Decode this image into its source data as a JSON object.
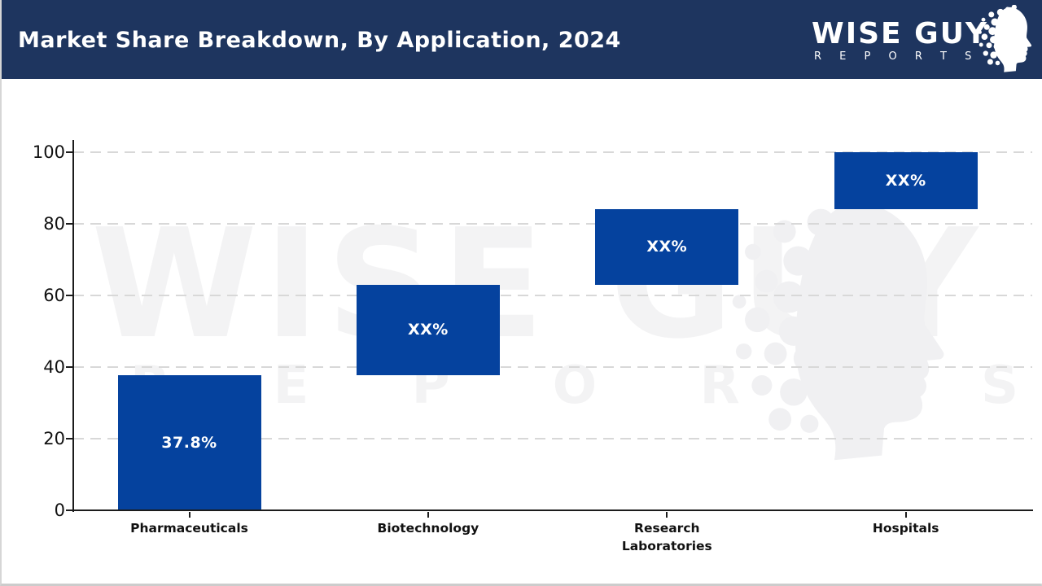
{
  "header": {
    "title": "Market Share Breakdown, By Application, 2024",
    "bg_color": "#1e355f",
    "logo": {
      "line1": "WISE GUY",
      "line2": "R E P O R T S",
      "icon": "wiseguy-head-icon"
    }
  },
  "watermark": {
    "line1": "WISE GUY",
    "line2": "R E P O R T S",
    "icon": "wiseguy-head-icon"
  },
  "chart_data": {
    "type": "bar",
    "subtype": "waterfall",
    "title": "Market Share Breakdown, By Application, 2024",
    "categories": [
      "Pharmaceuticals",
      "Biotechnology",
      "Research\nLaboratories",
      "Hospitals"
    ],
    "segments": [
      {
        "category": "Pharmaceuticals",
        "start": 0,
        "end": 37.8,
        "label": "37.8%"
      },
      {
        "category": "Biotechnology",
        "start": 37.8,
        "end": 62.9,
        "label": "XX%"
      },
      {
        "category": "Research Laboratories",
        "start": 62.9,
        "end": 84.2,
        "label": "XX%"
      },
      {
        "category": "Hospitals",
        "start": 84.2,
        "end": 100,
        "label": "XX%"
      }
    ],
    "yticks": [
      0,
      20,
      40,
      60,
      80,
      100
    ],
    "ylim": [
      0,
      100
    ],
    "grid": "horizontal-dashed",
    "legend": "none",
    "bar_color": "#05429e",
    "bar_label_color": "#ffffff"
  }
}
